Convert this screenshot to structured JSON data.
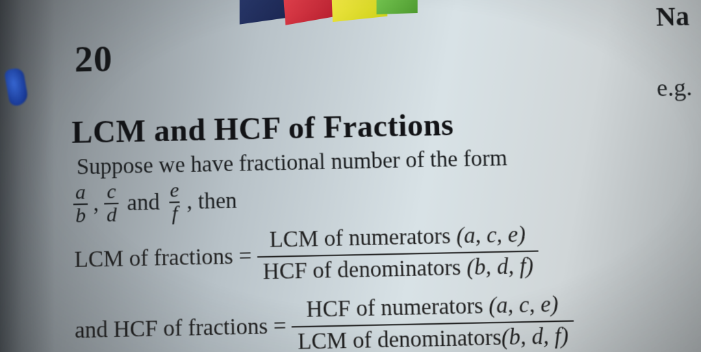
{
  "colors": {
    "text_main": "#1a1c1e",
    "text_heading": "#121316",
    "rule": "#1b1e20",
    "bg_gradient_stops": [
      "#6a6e72",
      "#888f94",
      "#b8c2c8",
      "#d8e2e6",
      "#d0d6d8",
      "#a5aaac"
    ],
    "shape_blue": "#1a2550",
    "shape_red": "#b51e2e",
    "shape_yellow": "#cfd21a",
    "shape_green": "#4e9a2f",
    "blue_mark": "#1b3ea0"
  },
  "typography": {
    "page_num_fontsize": 54,
    "heading_fontsize": 46,
    "body_fontsize": 33,
    "frac_small_fontsize": 30,
    "font_family": "Georgia / Times-like serif",
    "heading_weight": 900
  },
  "page_number": "20",
  "corner_text_top": "Na",
  "corner_text_eg": "e.g.",
  "heading": "LCM and HCF of Fractions",
  "intro_line": "Suppose we have fractional number of the form",
  "fractions_intro": {
    "items": [
      {
        "num": "a",
        "den": "b"
      },
      {
        "num": "c",
        "den": "d"
      },
      {
        "num": "e",
        "den": "f"
      }
    ],
    "sep_comma": ",",
    "join_word": "and",
    "tail": ", then"
  },
  "formula1": {
    "lhs": "LCM of fractions =",
    "numerator_prefix": "LCM of numerators ",
    "numerator_tuple": "(a, c, e)",
    "denominator_prefix": "HCF of denominators ",
    "denominator_tuple": "(b, d, f)"
  },
  "formula2": {
    "lhs": "and HCF of fractions =",
    "numerator_prefix": "HCF of numerators ",
    "numerator_tuple": "(a, c, e)",
    "denominator_prefix": "LCM of denominators",
    "denominator_tuple": "(b, d, f)"
  }
}
